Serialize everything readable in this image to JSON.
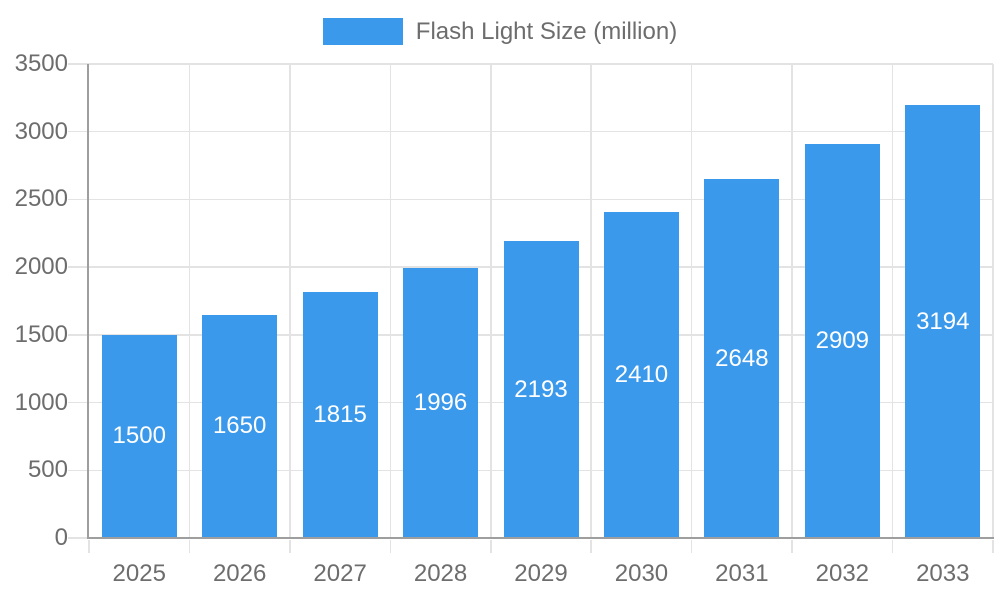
{
  "chart_data": {
    "type": "bar",
    "title": "Flash Light Size (million)",
    "categories": [
      "2025",
      "2026",
      "2027",
      "2028",
      "2029",
      "2030",
      "2031",
      "2032",
      "2033"
    ],
    "values": [
      1500,
      1650,
      1815,
      1996,
      2193,
      2410,
      2648,
      2909,
      3194
    ],
    "bar_value_labels": [
      "1500",
      "1650",
      "1815",
      "1996",
      "2193",
      "2410",
      "2648",
      "2909",
      "3194"
    ],
    "xlabel": "",
    "ylabel": "",
    "ylim": [
      0,
      3500
    ],
    "ytick_step": 500,
    "yticks": [
      "0",
      "500",
      "1000",
      "1500",
      "2000",
      "2500",
      "3000",
      "3500"
    ],
    "grid": true,
    "legend_position": "top-center",
    "colors": {
      "bar": "#3B99EC",
      "bar_label_text": "#FFFFFF",
      "gridline": "#E3E3E3",
      "axis_line": "#9E9E9E",
      "tick_label_text": "#6D6D6D",
      "legend_text": "#6D6D6D",
      "background": "#FFFFFF"
    }
  }
}
